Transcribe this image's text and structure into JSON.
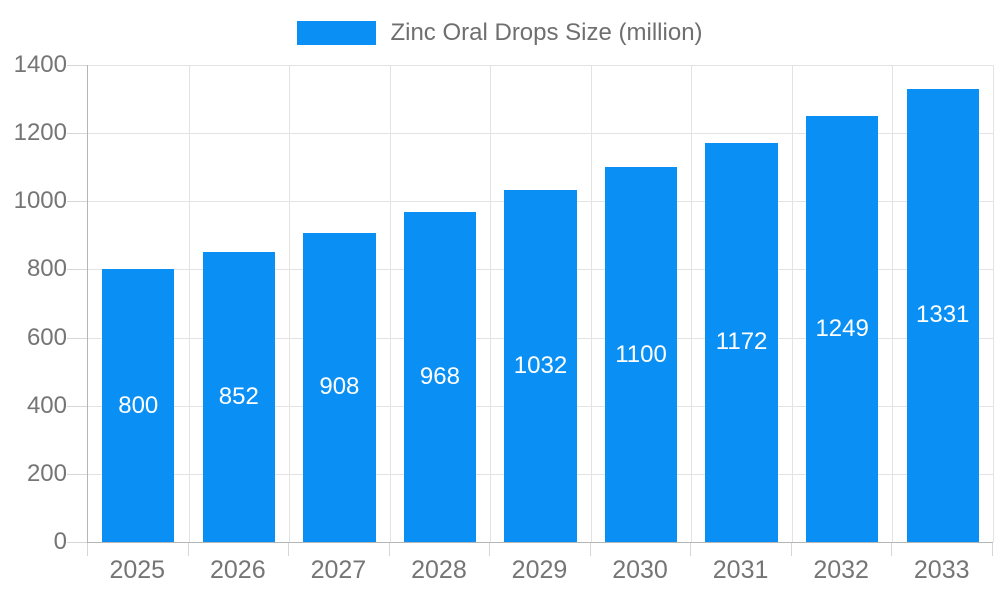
{
  "legend": {
    "label": "Zinc Oral Drops Size (million)",
    "position": "top-center"
  },
  "chart_data": {
    "type": "bar",
    "title": "Zinc Oral Drops Size (million)",
    "categories": [
      "2025",
      "2026",
      "2027",
      "2028",
      "2029",
      "2030",
      "2031",
      "2032",
      "2033"
    ],
    "values": [
      800,
      852,
      908,
      968,
      1032,
      1100,
      1172,
      1249,
      1331
    ],
    "xlabel": "",
    "ylabel": "",
    "ylim": [
      0,
      1400
    ],
    "yticks": [
      0,
      200,
      400,
      600,
      800,
      1000,
      1200,
      1400
    ],
    "grid": true,
    "legend_position": "top-center",
    "bar_labels_inside": true,
    "colors": {
      "bar": "#0A90F5",
      "bar_label": "#ffffff",
      "axis_text": "#757575",
      "legend_text": "#6f6f6f",
      "grid": "#e3e3e3",
      "axis_line": "#b5b5b5",
      "tick": "#d6d6d6",
      "background": "#ffffff"
    }
  }
}
